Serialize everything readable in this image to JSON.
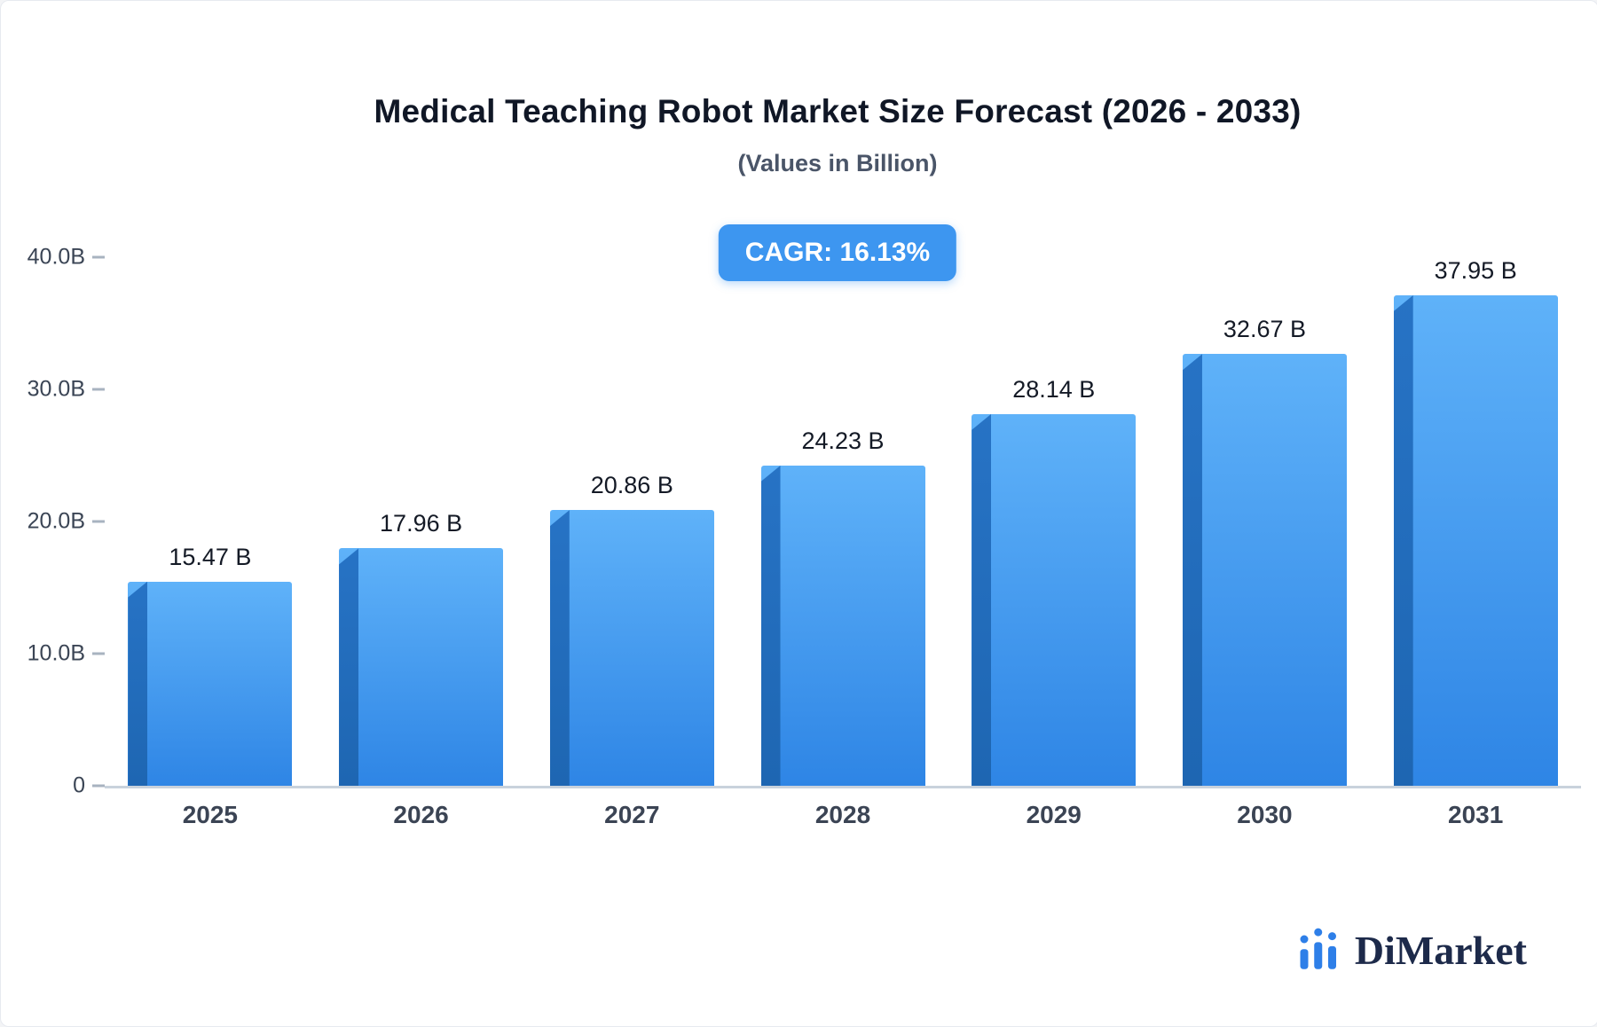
{
  "header": {
    "title": "Medical Teaching Robot Market Size Forecast (2026 - 2033)",
    "subtitle": "(Values in Billion)",
    "cagr_badge": "CAGR: 16.13%"
  },
  "chart_data": {
    "type": "bar",
    "title": "Medical Teaching Robot Market Size Forecast (2026 - 2033)",
    "subtitle": "(Values in Billion)",
    "annotation": "CAGR: 16.13%",
    "categories": [
      "2025",
      "2026",
      "2027",
      "2028",
      "2029",
      "2030",
      "2031"
    ],
    "values": [
      15.47,
      17.96,
      20.86,
      24.23,
      28.14,
      32.67,
      37.95
    ],
    "value_labels": [
      "15.47 B",
      "17.96 B",
      "20.86 B",
      "24.23 B",
      "28.14 B",
      "32.67 B",
      "37.95 B"
    ],
    "xlabel": "",
    "ylabel": "",
    "ylim": [
      0,
      40
    ],
    "y_ticks": [
      {
        "label": "40.0B",
        "value": 40
      },
      {
        "label": "30.0B",
        "value": 30
      },
      {
        "label": "20.0B",
        "value": 20
      },
      {
        "label": "10.0B",
        "value": 10
      },
      {
        "label": "0",
        "value": 0
      }
    ],
    "grid": false,
    "legend": false
  },
  "colors": {
    "bar_face_top": "#5FB2F9",
    "bar_face_bottom": "#2E85E5",
    "bar_side": "#1E66B2",
    "badge_bg": "#3D96F0",
    "badge_text": "#FFFFFF",
    "title_text": "#101726",
    "subtitle_text": "#4A5568",
    "axis_text": "#3B4555",
    "value_label_text": "#141A26",
    "axis_line": "#C9D2DC",
    "logo_text": "#1D2A4A",
    "logo_icon": "#2E7FE8",
    "background": "#FFFFFF"
  },
  "logo": {
    "text": "DiMarket",
    "icon": "bar-chart-dots-icon"
  }
}
